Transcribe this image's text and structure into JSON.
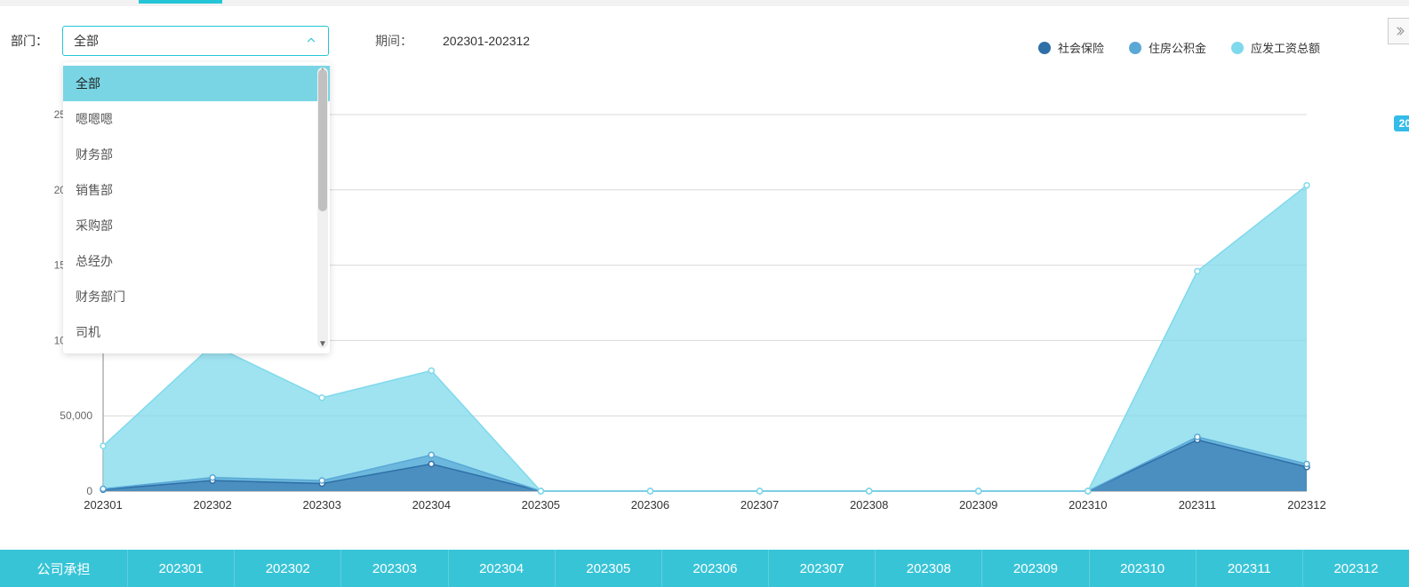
{
  "filters": {
    "department_label": "部门：",
    "selected": "全部",
    "options": [
      "全部",
      "嗯嗯嗯",
      "财务部",
      "销售部",
      "采购部",
      "总经办",
      "财务部门",
      "司机"
    ],
    "period_label": "期间：",
    "period_value": "202301-202312"
  },
  "chart": {
    "type": "area",
    "categories": [
      "202301",
      "202302",
      "202303",
      "202304",
      "202305",
      "202306",
      "202307",
      "202308",
      "202309",
      "202310",
      "202311",
      "202312"
    ],
    "ylim": [
      0,
      250000
    ],
    "ytick_step": 50000,
    "ytick_labels": [
      "0",
      "50,000",
      "100,000",
      "150,000",
      "200,000",
      "250,000"
    ],
    "grid_color": "#d9d9d9",
    "axis_color": "#888888",
    "background_color": "#ffffff",
    "label_fontsize": 12,
    "xlabel_fontsize": 13,
    "legend_position": "top-right",
    "series": [
      {
        "name": "社会保险",
        "color": "#2f6fa7",
        "values": [
          1000,
          7000,
          5000,
          18000,
          0,
          0,
          0,
          0,
          0,
          0,
          34000,
          16000
        ]
      },
      {
        "name": "住房公积金",
        "color": "#5aa8d6",
        "values": [
          1500,
          9000,
          7000,
          24000,
          0,
          0,
          0,
          0,
          0,
          0,
          36000,
          18000
        ]
      },
      {
        "name": "应发工资总额",
        "color": "#7fd9ec",
        "values": [
          30000,
          97000,
          62000,
          80000,
          0,
          0,
          0,
          0,
          0,
          0,
          146000,
          203000
        ]
      }
    ],
    "marker_radius": 3
  },
  "right_badge": "20",
  "table": {
    "first_col": "公司承担",
    "columns": [
      "202301",
      "202302",
      "202303",
      "202304",
      "202305",
      "202306",
      "202307",
      "202308",
      "202309",
      "202310",
      "202311",
      "202312"
    ],
    "header_bg": "#38c4d7",
    "header_color": "#ffffff"
  }
}
